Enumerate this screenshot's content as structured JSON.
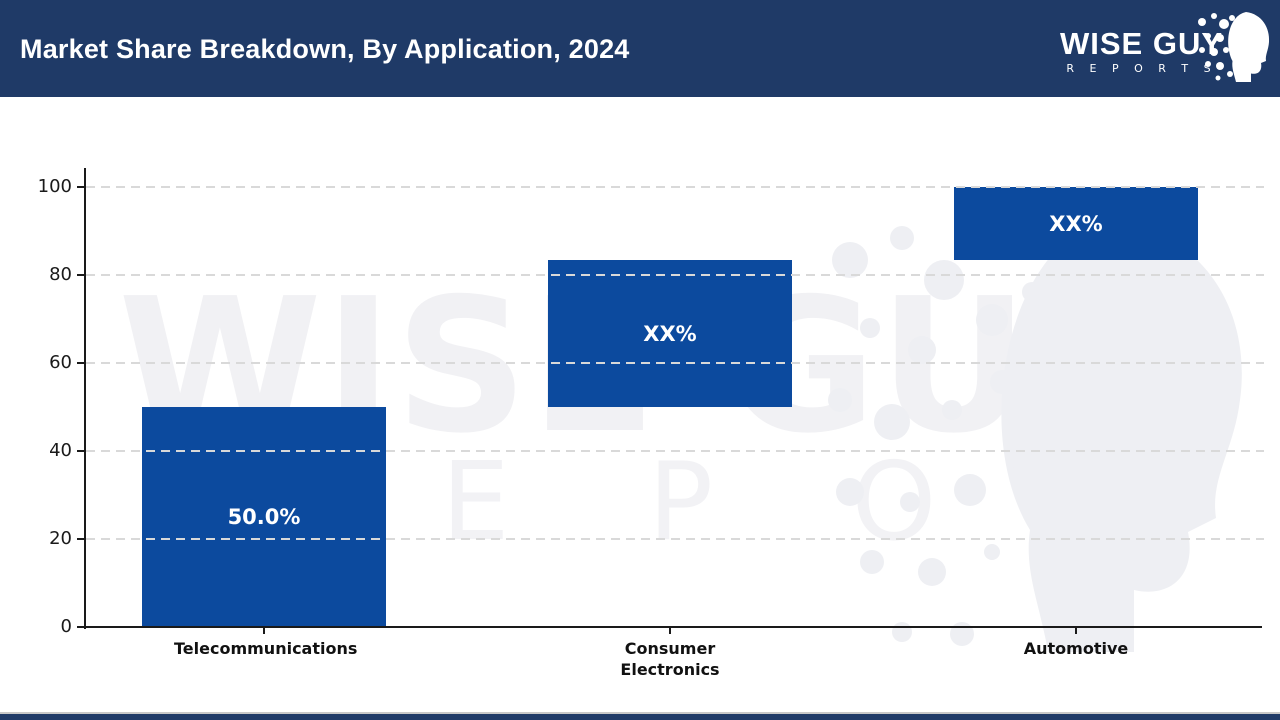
{
  "header": {
    "title": "Market Share Breakdown, By Application, 2024",
    "logo": {
      "name": "WISE GUY",
      "sub": "R E P O R T S"
    }
  },
  "watermark": {
    "line1": "WISE GUY",
    "line2": "R E P O R T S"
  },
  "chart_data": {
    "type": "bar",
    "subtype": "stacked-waterfall-segments",
    "title": "Market Share Breakdown, By Application, 2024",
    "categories": [
      "Telecommunications",
      "Consumer Electronics",
      "Automotive"
    ],
    "segments": [
      {
        "category": "Telecommunications",
        "start": 0,
        "end": 50,
        "value_label": "50.0%"
      },
      {
        "category": "Consumer Electronics",
        "start": 50,
        "end": 83.3,
        "value_label": "XX%"
      },
      {
        "category": "Automotive",
        "start": 83.3,
        "end": 100,
        "value_label": "XX%"
      }
    ],
    "xlabel": "",
    "ylabel": "",
    "yticks": [
      0,
      20,
      40,
      60,
      80,
      100
    ],
    "ylim": [
      0,
      105
    ],
    "grid": "dashed-horizontal-over-bars",
    "legend": "none"
  },
  "colors": {
    "header_bg": "#1f3a67",
    "footer_bg": "#1f3a67",
    "bar": "#0c4a9e",
    "bar_label": "#ffffff",
    "grid": "#d9d9d9",
    "axis": "#1a1a1a",
    "watermark": "#f1f1f4"
  }
}
